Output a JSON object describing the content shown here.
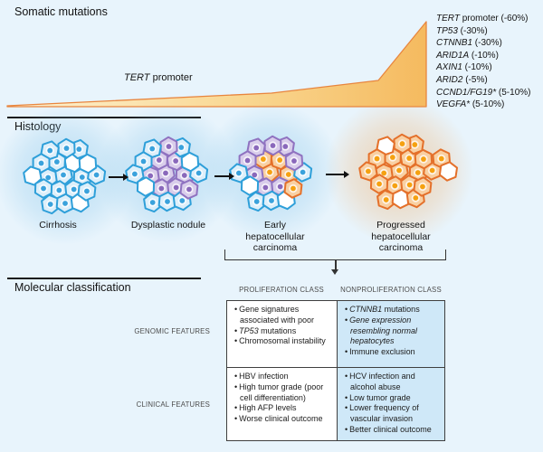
{
  "colors": {
    "background": "#e8f4fc",
    "wedge_fill_light": "#fdf2d3",
    "wedge_fill_dark": "#f5ba5f",
    "wedge_stroke": "#e8853e",
    "blue_cell_stroke": "#2e9fd9",
    "blue_cell_fill": "#ddeffa",
    "blue_nucleus": "#3aa2dc",
    "purple_cell_stroke": "#8f72c0",
    "purple_cell_fill": "#d9cdeb",
    "purple_nucleus": "#8a68bb",
    "orange_cell_stroke": "#e4702a",
    "orange_cell_fill": "#f9d0a2",
    "orange_nucleus": "#f5a110",
    "nonproliferation_bg": "#cfe8f8",
    "arrow": "#111111"
  },
  "somatic": {
    "title": "Somatic mutations",
    "wedge_label_gene": "TERT",
    "wedge_label_rest": " promoter",
    "genes": [
      [
        {
          "t": "TERT",
          "i": 1
        },
        {
          "t": " promoter (-60%)"
        }
      ],
      [
        {
          "t": "TP53",
          "i": 1
        },
        {
          "t": " (-30%)"
        }
      ],
      [
        {
          "t": "CTNNB1",
          "i": 1
        },
        {
          "t": " (-30%)"
        }
      ],
      [
        {
          "t": "ARID1A",
          "i": 1
        },
        {
          "t": " (-10%)"
        }
      ],
      [
        {
          "t": "AXIN1",
          "i": 1
        },
        {
          "t": " (-10%)"
        }
      ],
      [
        {
          "t": "ARID2",
          "i": 1
        },
        {
          "t": " (-5%)"
        }
      ],
      [
        {
          "t": "CCND1/FG19*",
          "i": 1
        },
        {
          "t": " (5-10%)"
        }
      ],
      [
        {
          "t": "VEGFA*",
          "i": 1
        },
        {
          "t": " (5-10%)"
        }
      ]
    ]
  },
  "histology": {
    "title": "Histology",
    "stages": [
      {
        "label": "Cirrhosis"
      },
      {
        "label": "Dysplastic nodule"
      },
      {
        "label": "Early hepatocellular carcinoma"
      },
      {
        "label": "Progressed hepatocellular carcinoma"
      }
    ]
  },
  "classification": {
    "title": "Molecular classification",
    "column_headers": [
      "PROLIFERATION CLASS",
      "NONPROLIFERATION CLASS"
    ],
    "row_labels": [
      "GENOMIC FEATURES",
      "CLINICAL FEATURES"
    ],
    "cells": {
      "genomic_proliferation": [
        [
          {
            "t": "Gene signatures associated with poor"
          }
        ],
        [
          {
            "t": "TP53",
            "i": 1
          },
          {
            "t": " mutations"
          }
        ],
        [
          {
            "t": "Chromosomal instability"
          }
        ]
      ],
      "genomic_nonproliferation": [
        [
          {
            "t": "CTNNB1",
            "i": 1
          },
          {
            "t": " mutations"
          }
        ],
        [
          {
            "t": "Gene expression resembling normal hepatocytes",
            "i": 1
          }
        ],
        [
          {
            "t": "Immune exclusion"
          }
        ]
      ],
      "clinical_proliferation": [
        [
          {
            "t": "HBV infection"
          }
        ],
        [
          {
            "t": "High tumor grade (poor cell differentiation)"
          }
        ],
        [
          {
            "t": "High AFP levels"
          }
        ],
        [
          {
            "t": "Worse clinical outcome"
          }
        ]
      ],
      "clinical_nonproliferation": [
        [
          {
            "t": "HCV infection and alcohol abuse"
          }
        ],
        [
          {
            "t": "Low tumor grade"
          }
        ],
        [
          {
            "t": "Lower frequency of vascular invasion"
          }
        ],
        [
          {
            "t": "Better clinical outcome"
          }
        ]
      ]
    }
  }
}
